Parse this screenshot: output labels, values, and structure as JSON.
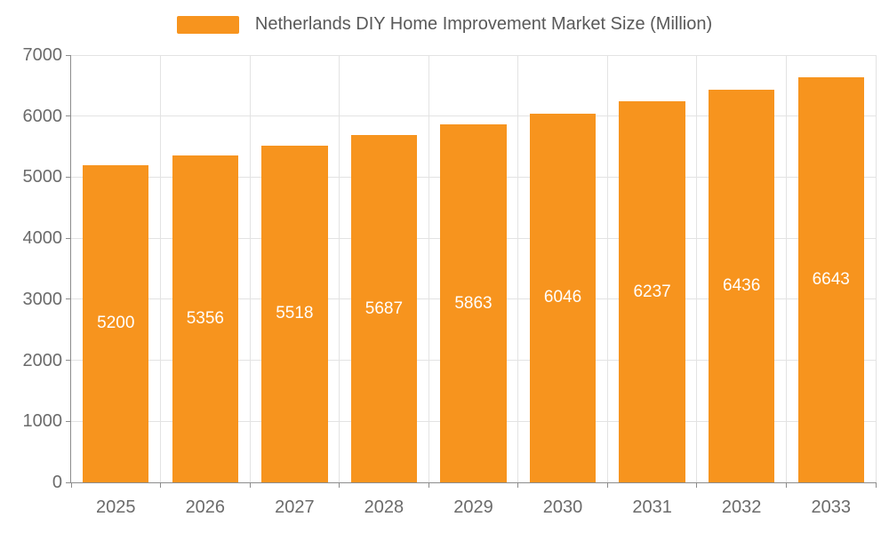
{
  "chart_data": {
    "type": "bar",
    "title": "Netherlands DIY Home Improvement Market Size (Million)",
    "series_name": "Netherlands DIY Home Improvement Market Size (Million)",
    "categories": [
      "2025",
      "2026",
      "2027",
      "2028",
      "2029",
      "2030",
      "2031",
      "2032",
      "2033"
    ],
    "values": [
      5200,
      5356,
      5518,
      5687,
      5863,
      6046,
      6237,
      6436,
      6643
    ],
    "xlabel": "",
    "ylabel": "",
    "ylim": [
      0,
      7000
    ],
    "yticks": [
      0,
      1000,
      2000,
      3000,
      4000,
      5000,
      6000,
      7000
    ],
    "grid": true,
    "legend_position": "top",
    "bar_color": "#F7941E",
    "value_label_color": "#ffffff",
    "value_label_position": "inside-middle"
  },
  "colors": {
    "background": "#ffffff",
    "axis": "#8c8c8c",
    "gridline": "#e3e3e3",
    "axis_label": "#6b6b6b",
    "title": "#595959"
  }
}
